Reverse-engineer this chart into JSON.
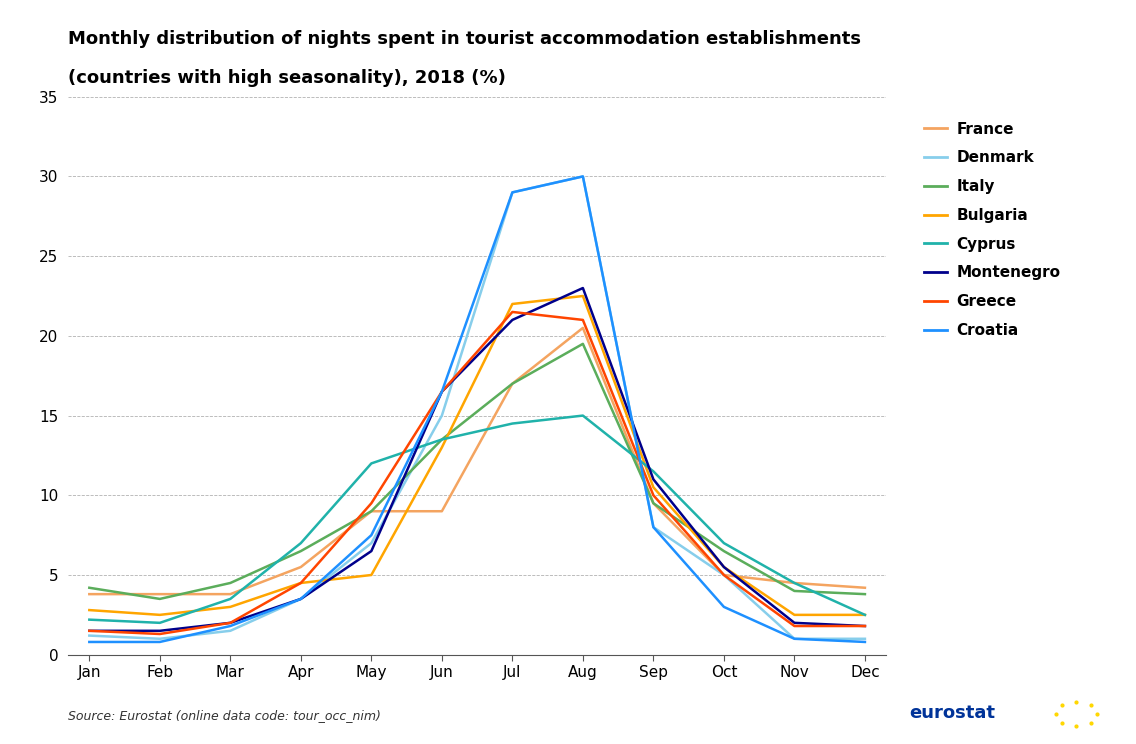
{
  "title_line1": "Monthly distribution of nights spent in tourist accommodation establishments",
  "title_line2": "(countries with high seasonality), 2018 (%)",
  "source": "Source: Eurostat (online data code: tour_occ_nim)",
  "months": [
    "Jan",
    "Feb",
    "Mar",
    "Apr",
    "May",
    "Jun",
    "Jul",
    "Aug",
    "Sep",
    "Oct",
    "Nov",
    "Dec"
  ],
  "ylim": [
    0,
    35
  ],
  "yticks": [
    0,
    5,
    10,
    15,
    20,
    25,
    30,
    35
  ],
  "series": {
    "France": {
      "color": "#F4A460",
      "data": [
        3.8,
        3.8,
        3.8,
        5.5,
        9.0,
        9.0,
        17.0,
        20.5,
        9.5,
        5.0,
        4.5,
        4.2
      ]
    },
    "Denmark": {
      "color": "#87CEEB",
      "data": [
        1.2,
        1.0,
        1.5,
        3.5,
        7.0,
        15.0,
        29.0,
        30.0,
        8.0,
        5.0,
        1.0,
        1.0
      ]
    },
    "Italy": {
      "color": "#5BAD5B",
      "data": [
        4.2,
        3.5,
        4.5,
        6.5,
        9.0,
        13.5,
        17.0,
        19.5,
        9.5,
        6.5,
        4.0,
        3.8
      ]
    },
    "Bulgaria": {
      "color": "#FFA500",
      "data": [
        2.8,
        2.5,
        3.0,
        4.5,
        5.0,
        13.0,
        22.0,
        22.5,
        10.5,
        5.5,
        2.5,
        2.5
      ]
    },
    "Cyprus": {
      "color": "#20B2AA",
      "data": [
        2.2,
        2.0,
        3.5,
        7.0,
        12.0,
        13.5,
        14.5,
        15.0,
        11.5,
        7.0,
        4.5,
        2.5
      ]
    },
    "Montenegro": {
      "color": "#00008B",
      "data": [
        1.5,
        1.5,
        2.0,
        3.5,
        6.5,
        16.5,
        21.0,
        23.0,
        11.0,
        5.5,
        2.0,
        1.8
      ]
    },
    "Greece": {
      "color": "#FF4500",
      "data": [
        1.5,
        1.3,
        2.0,
        4.5,
        9.5,
        16.5,
        21.5,
        21.0,
        10.0,
        5.0,
        1.8,
        1.8
      ]
    },
    "Croatia": {
      "color": "#1E90FF",
      "data": [
        0.8,
        0.8,
        1.8,
        3.5,
        7.5,
        16.5,
        29.0,
        30.0,
        8.0,
        3.0,
        1.0,
        0.8
      ]
    }
  },
  "legend_order": [
    "France",
    "Denmark",
    "Italy",
    "Bulgaria",
    "Cyprus",
    "Montenegro",
    "Greece",
    "Croatia"
  ],
  "background_color": "#ffffff",
  "grid_color": "#aaaaaa",
  "title_fontsize": 13,
  "axis_fontsize": 11,
  "legend_fontsize": 11
}
